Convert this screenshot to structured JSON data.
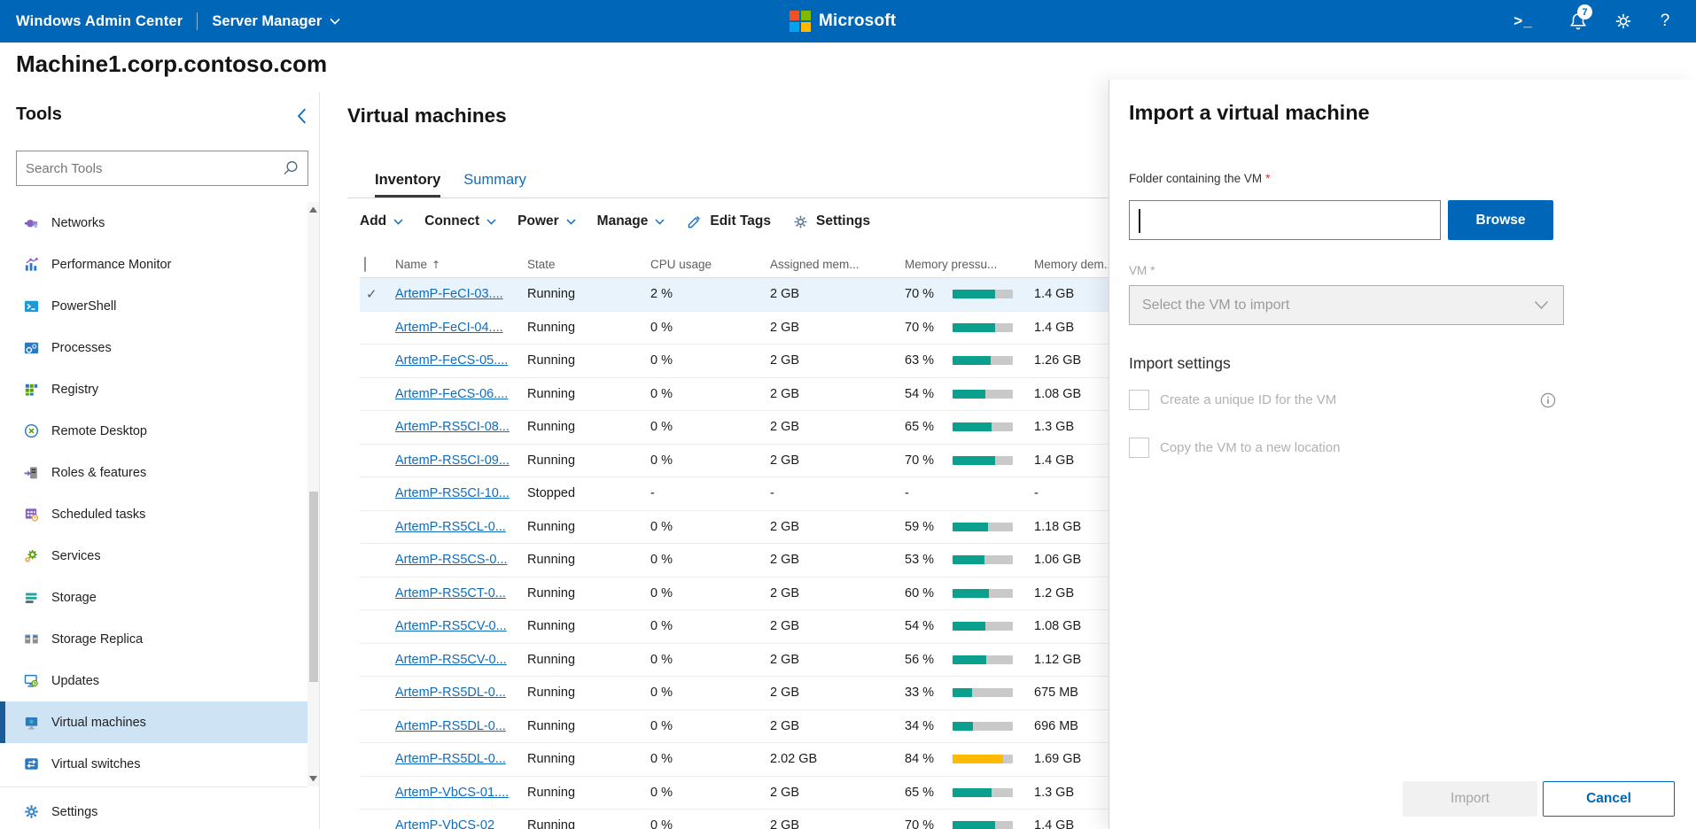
{
  "topbar": {
    "app_title": "Windows Admin Center",
    "solution_menu": "Server Manager",
    "brand": "Microsoft",
    "notification_count": "7"
  },
  "header": {
    "machine_title": "Machine1.corp.contoso.com"
  },
  "sidebar": {
    "heading": "Tools",
    "search_placeholder": "Search Tools",
    "items": [
      {
        "label": "Networks",
        "icon": "networks"
      },
      {
        "label": "Performance Monitor",
        "icon": "perfmon"
      },
      {
        "label": "PowerShell",
        "icon": "powershell"
      },
      {
        "label": "Processes",
        "icon": "processes"
      },
      {
        "label": "Registry",
        "icon": "registry"
      },
      {
        "label": "Remote Desktop",
        "icon": "remote-desktop"
      },
      {
        "label": "Roles & features",
        "icon": "roles"
      },
      {
        "label": "Scheduled tasks",
        "icon": "scheduled-tasks"
      },
      {
        "label": "Services",
        "icon": "services"
      },
      {
        "label": "Storage",
        "icon": "storage"
      },
      {
        "label": "Storage Replica",
        "icon": "storage-replica"
      },
      {
        "label": "Updates",
        "icon": "updates"
      },
      {
        "label": "Virtual machines",
        "icon": "virtual-machines",
        "selected": true
      },
      {
        "label": "Virtual switches",
        "icon": "virtual-switches"
      }
    ],
    "footer_item": {
      "label": "Settings",
      "icon": "settings"
    }
  },
  "main": {
    "title": "Virtual machines",
    "tabs": [
      {
        "label": "Inventory",
        "active": true
      },
      {
        "label": "Summary",
        "active": false
      }
    ],
    "toolbar": [
      {
        "label": "Add",
        "menu": true
      },
      {
        "label": "Connect",
        "menu": true
      },
      {
        "label": "Power",
        "menu": true
      },
      {
        "label": "Manage",
        "menu": true
      },
      {
        "label": "Edit Tags",
        "icon": "pencil"
      },
      {
        "label": "Settings",
        "icon": "gear"
      }
    ],
    "table": {
      "columns": [
        "Name",
        "State",
        "CPU usage",
        "Assigned mem...",
        "Memory pressu...",
        "Memory dem..."
      ],
      "sort_column": "Name",
      "sort_direction": "ascending",
      "rows": [
        {
          "name": "ArtemP-FeCI-03....",
          "state": "Running",
          "cpu": "2 %",
          "memory": "2 GB",
          "pressure": "70 %",
          "pressure_pct": 70,
          "demand": "1.4 GB",
          "selected": true
        },
        {
          "name": "ArtemP-FeCI-04....",
          "state": "Running",
          "cpu": "0 %",
          "memory": "2 GB",
          "pressure": "70 %",
          "pressure_pct": 70,
          "demand": "1.4 GB"
        },
        {
          "name": "ArtemP-FeCS-05....",
          "state": "Running",
          "cpu": "0 %",
          "memory": "2 GB",
          "pressure": "63 %",
          "pressure_pct": 63,
          "demand": "1.26 GB"
        },
        {
          "name": "ArtemP-FeCS-06....",
          "state": "Running",
          "cpu": "0 %",
          "memory": "2 GB",
          "pressure": "54 %",
          "pressure_pct": 54,
          "demand": "1.08 GB"
        },
        {
          "name": "ArtemP-RS5CI-08...",
          "state": "Running",
          "cpu": "0 %",
          "memory": "2 GB",
          "pressure": "65 %",
          "pressure_pct": 65,
          "demand": "1.3 GB"
        },
        {
          "name": "ArtemP-RS5CI-09...",
          "state": "Running",
          "cpu": "0 %",
          "memory": "2 GB",
          "pressure": "70 %",
          "pressure_pct": 70,
          "demand": "1.4 GB"
        },
        {
          "name": "ArtemP-RS5CI-10...",
          "state": "Stopped",
          "cpu": "-",
          "memory": "-",
          "pressure": "-",
          "pressure_pct": null,
          "demand": "-"
        },
        {
          "name": "ArtemP-RS5CL-0...",
          "state": "Running",
          "cpu": "0 %",
          "memory": "2 GB",
          "pressure": "59 %",
          "pressure_pct": 59,
          "demand": "1.18 GB"
        },
        {
          "name": "ArtemP-RS5CS-0...",
          "state": "Running",
          "cpu": "0 %",
          "memory": "2 GB",
          "pressure": "53 %",
          "pressure_pct": 53,
          "demand": "1.06 GB"
        },
        {
          "name": "ArtemP-RS5CT-0...",
          "state": "Running",
          "cpu": "0 %",
          "memory": "2 GB",
          "pressure": "60 %",
          "pressure_pct": 60,
          "demand": "1.2 GB"
        },
        {
          "name": "ArtemP-RS5CV-0...",
          "state": "Running",
          "cpu": "0 %",
          "memory": "2 GB",
          "pressure": "54 %",
          "pressure_pct": 54,
          "demand": "1.08 GB"
        },
        {
          "name": "ArtemP-RS5CV-0...",
          "state": "Running",
          "cpu": "0 %",
          "memory": "2 GB",
          "pressure": "56 %",
          "pressure_pct": 56,
          "demand": "1.12 GB"
        },
        {
          "name": "ArtemP-RS5DL-0...",
          "state": "Running",
          "cpu": "0 %",
          "memory": "2 GB",
          "pressure": "33 %",
          "pressure_pct": 33,
          "demand": "675 MB"
        },
        {
          "name": "ArtemP-RS5DL-0...",
          "state": "Running",
          "cpu": "0 %",
          "memory": "2 GB",
          "pressure": "34 %",
          "pressure_pct": 34,
          "demand": "696 MB"
        },
        {
          "name": "ArtemP-RS5DL-0...",
          "state": "Running",
          "cpu": "0 %",
          "memory": "2.02 GB",
          "pressure": "84 %",
          "pressure_pct": 84,
          "demand": "1.69 GB",
          "warn": true
        },
        {
          "name": "ArtemP-VbCS-01....",
          "state": "Running",
          "cpu": "0 %",
          "memory": "2 GB",
          "pressure": "65 %",
          "pressure_pct": 65,
          "demand": "1.3 GB"
        },
        {
          "name": "ArtemP-VbCS-02",
          "state": "Running",
          "cpu": "0 %",
          "memory": "2 GB",
          "pressure": "70 %",
          "pressure_pct": 70,
          "demand": "1.4 GB"
        }
      ]
    }
  },
  "panel": {
    "title": "Import a virtual machine",
    "folder_field": {
      "label": "Folder containing the VM",
      "required": "*",
      "value": ""
    },
    "browse_button": "Browse",
    "vm_field": {
      "label": "VM",
      "required": "*",
      "placeholder": "Select the VM to import"
    },
    "settings_heading": "Import settings",
    "options": [
      {
        "label": "Create a unique ID for the VM",
        "checked": false,
        "info": true
      },
      {
        "label": "Copy the VM to a new location",
        "checked": false
      }
    ],
    "import_button": "Import",
    "cancel_button": "Cancel"
  },
  "colors": {
    "topbar_blue": "#0067b8",
    "primary_blue": "#0067b8",
    "link_blue": "#0f6cbd",
    "pressure_ok": "#0aa08d",
    "pressure_warn": "#ffb900",
    "selected_row_bg": "#e9f3fb",
    "sidebar_selected_bg": "#cee4f5",
    "sidebar_selected_accent": "#1b5c98",
    "ms_logo": [
      "#f25022",
      "#7fba00",
      "#00a4ef",
      "#ffb900"
    ]
  }
}
